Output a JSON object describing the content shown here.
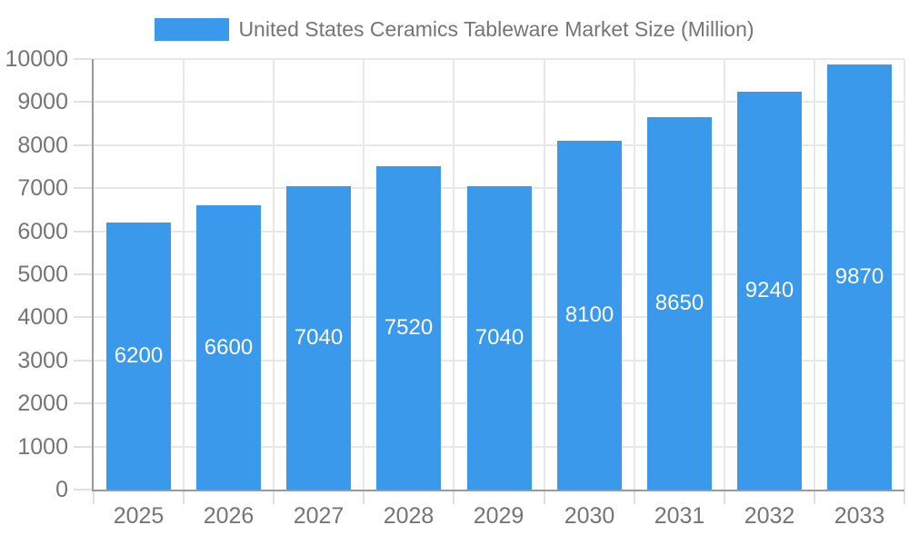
{
  "legend": {
    "label": "United States Ceramics Tableware Market Size (Million)"
  },
  "chart_data": {
    "type": "bar",
    "title": "United States Ceramics Tableware Market Size (Million)",
    "categories": [
      "2025",
      "2026",
      "2027",
      "2028",
      "2029",
      "2030",
      "2031",
      "2032",
      "2033"
    ],
    "values": [
      6200,
      6600,
      7040,
      7520,
      7040,
      8100,
      8650,
      9240,
      9870
    ],
    "xlabel": "",
    "ylabel": "",
    "ylim": [
      0,
      10000
    ],
    "ytick_step": 1000,
    "ytick_labels": [
      "0",
      "1000",
      "2000",
      "3000",
      "4000",
      "5000",
      "6000",
      "7000",
      "8000",
      "9000",
      "10000"
    ],
    "grid": true,
    "legend_position": "top-center",
    "bar_value_labels_inside": true
  },
  "colors": {
    "bar": "#3b99ec",
    "bar_label_text": "#ffffff",
    "axis_line": "#9a9a9a",
    "gridline": "#e8e8e8",
    "tick": "#e0e0e0",
    "axis_text": "#757575",
    "legend_text": "#757575",
    "background": "#ffffff"
  }
}
